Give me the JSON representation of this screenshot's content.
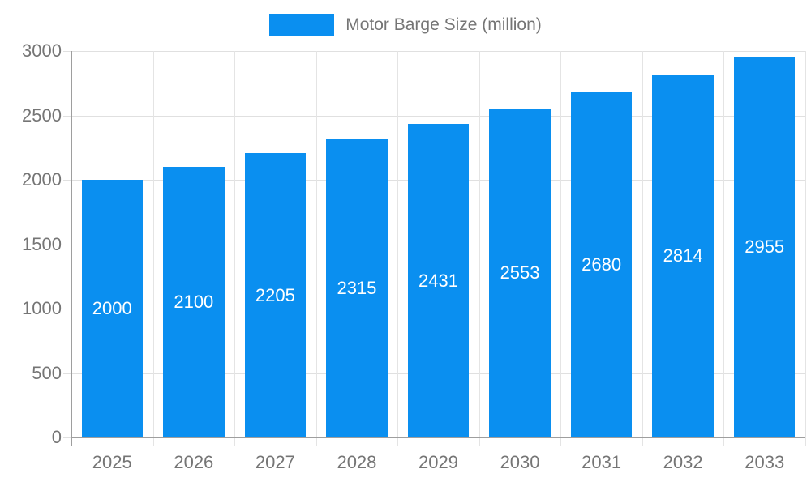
{
  "legend": {
    "label": "Motor Barge Size (million)"
  },
  "colors": {
    "bar": "#0a8ff0",
    "bar_label": "#ffffff",
    "axis_text": "#757575",
    "grid": "#e0e0e0",
    "axis_line": "#9e9e9e"
  },
  "chart_data": {
    "type": "bar",
    "title": "",
    "legend_label": "Motor Barge Size (million)",
    "legend_position": "top",
    "categories": [
      "2025",
      "2026",
      "2027",
      "2028",
      "2029",
      "2030",
      "2031",
      "2032",
      "2033"
    ],
    "values": [
      2000,
      2100,
      2205,
      2315,
      2431,
      2553,
      2680,
      2814,
      2955
    ],
    "bar_value_labels": [
      "2000",
      "2100",
      "2205",
      "2315",
      "2431",
      "2553",
      "2680",
      "2814",
      "2955"
    ],
    "xlabel": "",
    "ylabel": "",
    "ylim": [
      0,
      3000
    ],
    "yticks": [
      0,
      500,
      1000,
      1500,
      2000,
      2500,
      3000
    ],
    "grid": true,
    "bar_labels_inside": true
  }
}
